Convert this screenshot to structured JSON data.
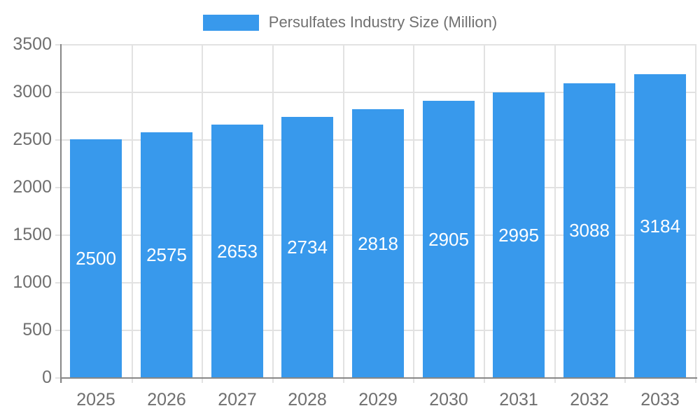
{
  "chart_data": {
    "type": "bar",
    "title": "Persulfates Industry Size (Million)",
    "legend_label": "Persulfates Industry Size (Million)",
    "legend_position": "top",
    "categories": [
      "2025",
      "2026",
      "2027",
      "2028",
      "2029",
      "2030",
      "2031",
      "2032",
      "2033"
    ],
    "series": [
      {
        "name": "Persulfates Industry Size (Million)",
        "values": [
          2500,
          2575,
          2653,
          2734,
          2818,
          2905,
          2995,
          3088,
          3184
        ]
      }
    ],
    "bar_value_labels": [
      "2500",
      "2575",
      "2653",
      "2734",
      "2818",
      "2905",
      "2995",
      "3088",
      "3184"
    ],
    "xlabel": "",
    "ylabel": "",
    "ylim": [
      0,
      3500
    ],
    "ytick_step": 500,
    "yticks": [
      0,
      500,
      1000,
      1500,
      2000,
      2500,
      3000,
      3500
    ],
    "grid": true,
    "colors": {
      "bar": "#3899ec",
      "bar_value_text": "#ffffff",
      "gridline": "#e2e2e2",
      "axis_line": "#878787",
      "tick_text": "#6f6f6f",
      "legend_text": "#707070",
      "background": "#ffffff"
    }
  }
}
